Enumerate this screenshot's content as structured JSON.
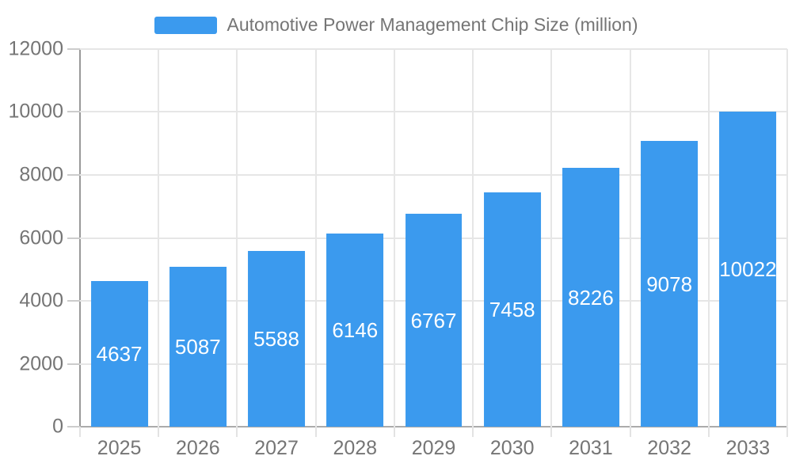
{
  "chart_data": {
    "type": "bar",
    "title": "Automotive Power Management Chip Size (million)",
    "legend": {
      "label": "Automotive Power Management Chip Size (million)",
      "position": "top-center"
    },
    "categories": [
      "2025",
      "2026",
      "2027",
      "2028",
      "2029",
      "2030",
      "2031",
      "2032",
      "2033"
    ],
    "series": [
      {
        "name": "Automotive Power Management Chip Size (million)",
        "values": [
          4637,
          5087,
          5588,
          6146,
          6767,
          7458,
          8226,
          9078,
          10022
        ]
      }
    ],
    "data_labels": [
      "4637",
      "5087",
      "5588",
      "6146",
      "6767",
      "7458",
      "8226",
      "9078",
      "10022"
    ],
    "xlabel": "",
    "ylabel": "",
    "ylim": [
      0,
      12000
    ],
    "y_interval": 2000,
    "y_ticks": [
      "0",
      "2000",
      "4000",
      "6000",
      "8000",
      "10000",
      "12000"
    ],
    "grid": true,
    "bar_width_fraction": 0.725,
    "colors": {
      "bar": "#3b9aee",
      "bar_label": "#ffffff",
      "axis_text": "#757575",
      "grid_line": "#e6e6e6",
      "y_axis_line": "#999999",
      "x_axis_line": "#ababab",
      "left_tick": "#cccccc",
      "bottom_tick": "#e3e3e3",
      "background": "#ffffff"
    }
  }
}
